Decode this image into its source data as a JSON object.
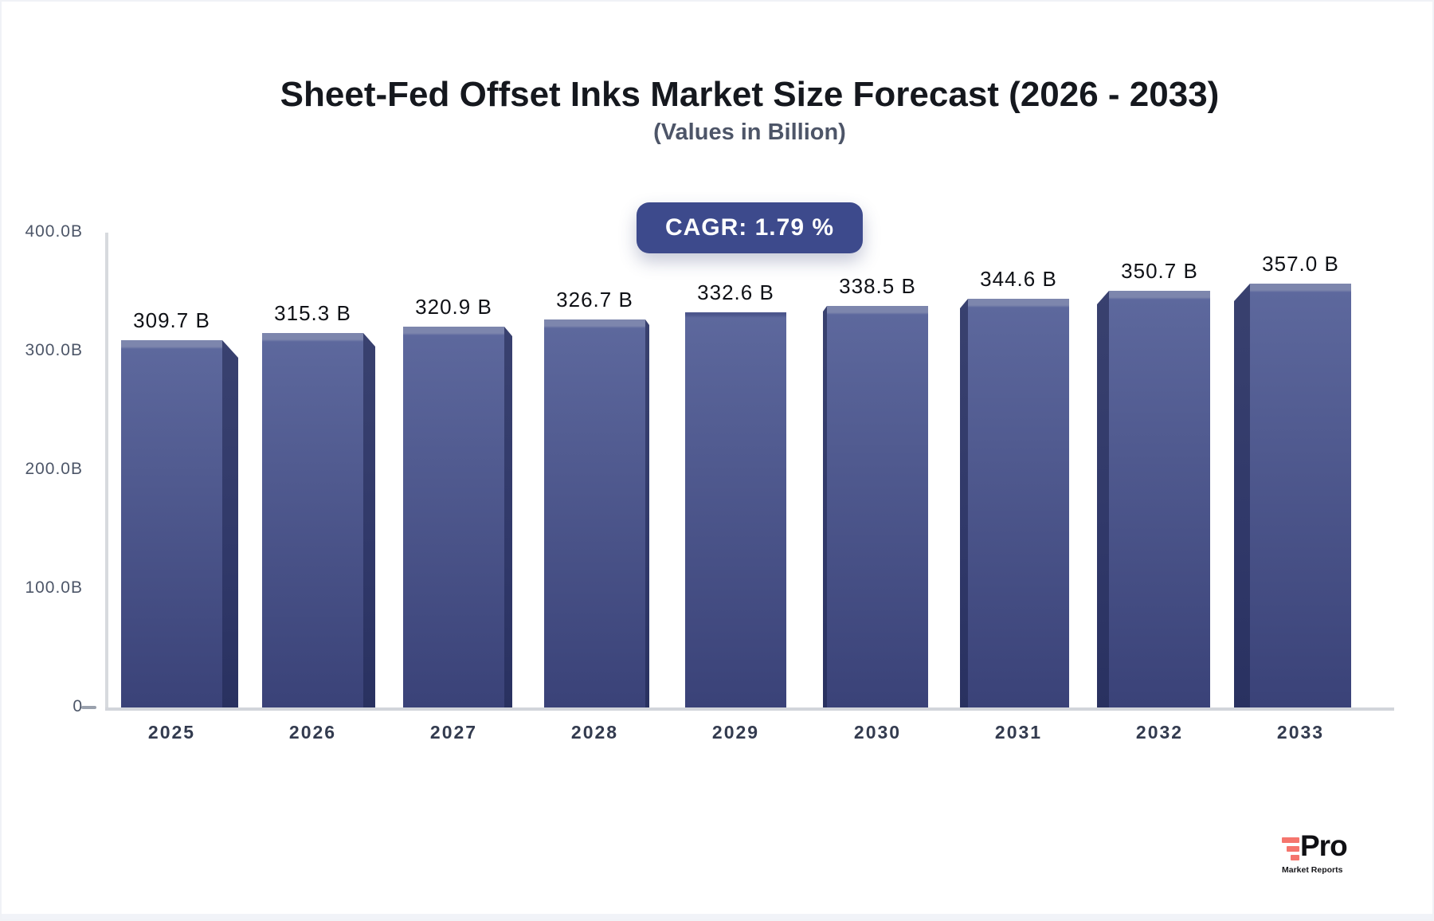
{
  "title": "Sheet-Fed Offset Inks Market Size Forecast (2026 - 2033)",
  "subtitle": "(Values in Billion)",
  "cagr": {
    "label": "CAGR: 1.79 %"
  },
  "logo": {
    "line1": "Pro",
    "line2": "Market Reports"
  },
  "colors": {
    "badge_bg": "#3d4a8c",
    "bar_face_top": "#5d689d",
    "bar_face_bottom": "#3a4278",
    "bar_top_strip": "#7d86ad",
    "bar_side": "#303869",
    "axis_line": "#d7dade",
    "logo_accent": "#f5756d"
  },
  "chart_data": {
    "type": "bar",
    "title": "Sheet-Fed Offset Inks Market Size Forecast (2026 - 2033)",
    "subtitle": "(Values in Billion)",
    "categories": [
      "2025",
      "2026",
      "2027",
      "2028",
      "2029",
      "2030",
      "2031",
      "2032",
      "2033"
    ],
    "values": [
      309.7,
      315.3,
      320.9,
      326.7,
      332.6,
      338.5,
      344.6,
      350.7,
      357.0
    ],
    "data_labels": [
      "309.7 B",
      "315.3 B",
      "320.9 B",
      "326.7 B",
      "332.6 B",
      "338.5 B",
      "344.6 B",
      "350.7 B",
      "357.0 B"
    ],
    "value_suffix": " B",
    "xlabel": "",
    "ylabel": "",
    "ylim": [
      0,
      400
    ],
    "grid": false,
    "legend": false,
    "annotation": "CAGR: 1.79 %",
    "yticks": [
      {
        "label": "400.0B",
        "value": 400,
        "dash": false
      },
      {
        "label": "300.0B",
        "value": 300,
        "dash": false
      },
      {
        "label": "200.0B",
        "value": 200,
        "dash": false
      },
      {
        "label": "100.0B",
        "value": 100,
        "dash": false
      },
      {
        "label": "0",
        "value": 0,
        "dash": true
      }
    ]
  }
}
